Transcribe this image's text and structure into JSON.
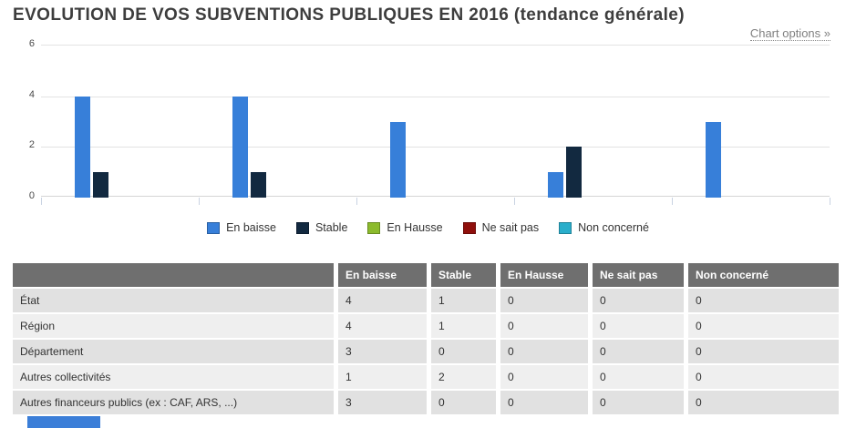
{
  "header": {
    "title": "EVOLUTION DE VOS SUBVENTIONS PUBLIQUES EN 2016 (tendance générale)",
    "chart_options_label": "Chart options »"
  },
  "chart_data": {
    "type": "bar",
    "title": "EVOLUTION DE VOS SUBVENTIONS PUBLIQUES EN 2016 (tendance générale)",
    "categories": [
      "État",
      "Région",
      "Département",
      "Autres collectivités",
      "Autres financeurs publics (ex : CAF, ARS, ...)"
    ],
    "series": [
      {
        "name": "En baisse",
        "color": "#377fd9",
        "values": [
          4,
          4,
          3,
          1,
          3
        ]
      },
      {
        "name": "Stable",
        "color": "#122940",
        "values": [
          1,
          1,
          0,
          2,
          0
        ]
      },
      {
        "name": "En Hausse",
        "color": "#8cbb2d",
        "values": [
          0,
          0,
          0,
          0,
          0
        ]
      },
      {
        "name": "Ne sait pas",
        "color": "#8f0f0c",
        "values": [
          0,
          0,
          0,
          0,
          0
        ]
      },
      {
        "name": "Non concerné",
        "color": "#2aaecb",
        "values": [
          0,
          0,
          0,
          0,
          0
        ]
      }
    ],
    "xlabel": "",
    "ylabel": "",
    "ylim": [
      0,
      6
    ],
    "yticks": [
      0,
      2,
      4,
      6
    ],
    "grid": true,
    "legend_position": "bottom",
    "x_tick_labels_shown": false
  },
  "table": {
    "columns": [
      "",
      "En baisse",
      "Stable",
      "En Hausse",
      "Ne sait pas",
      "Non concerné"
    ],
    "rows": [
      {
        "label": "État",
        "values": [
          "4",
          "1",
          "0",
          "0",
          "0"
        ]
      },
      {
        "label": "Région",
        "values": [
          "4",
          "1",
          "0",
          "0",
          "0"
        ]
      },
      {
        "label": "Département",
        "values": [
          "3",
          "0",
          "0",
          "0",
          "0"
        ]
      },
      {
        "label": "Autres collectivités",
        "values": [
          "1",
          "2",
          "0",
          "0",
          "0"
        ]
      },
      {
        "label": "Autres financeurs publics (ex : CAF, ARS, ...)",
        "values": [
          "3",
          "0",
          "0",
          "0",
          "0"
        ]
      }
    ]
  },
  "misc": {
    "partial_bar_color": "#3b7ed8"
  }
}
